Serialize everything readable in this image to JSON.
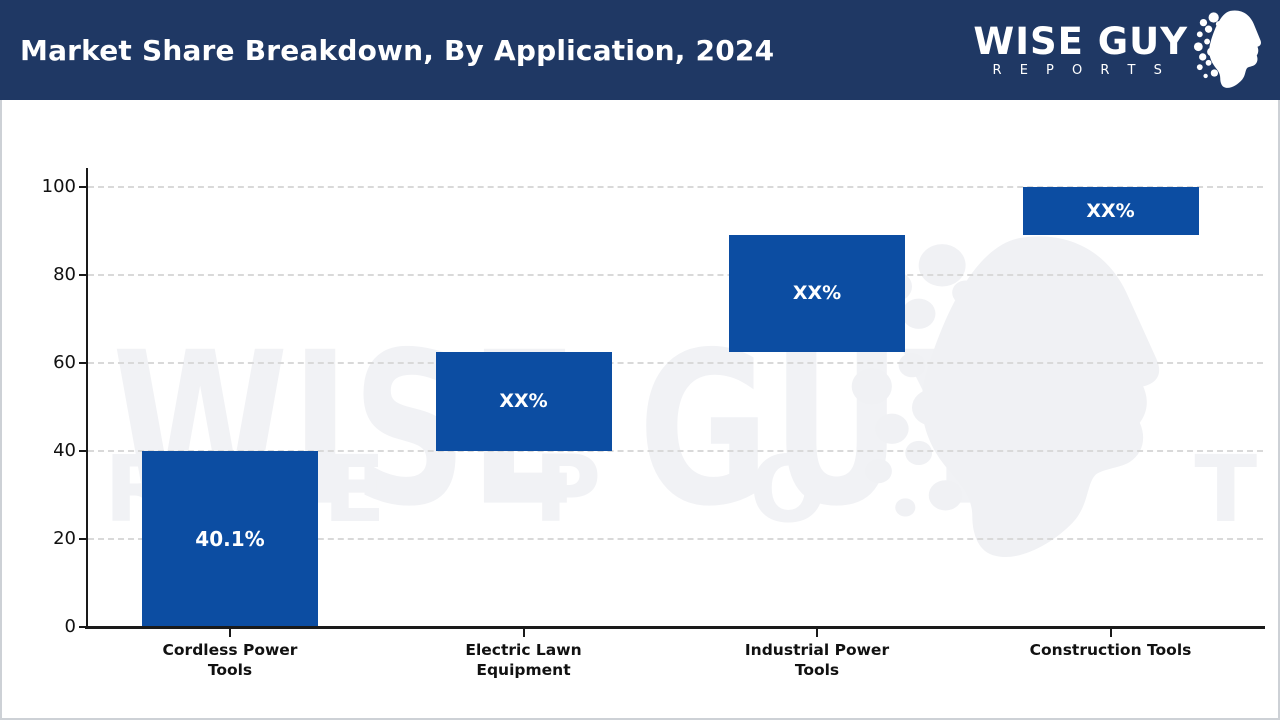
{
  "header": {
    "title": "Market Share Breakdown, By Application, 2024",
    "bg_color": "#1f3864",
    "logo": {
      "line1": "WISE GUY",
      "line2": "R E P O R T S"
    }
  },
  "watermark": {
    "text1": "WISE GUY",
    "text2": "R E P O R T S"
  },
  "chart_data": {
    "type": "bar",
    "subtype": "waterfall-floating-bars",
    "title": "Market Share Breakdown, By Application, 2024",
    "categories": [
      "Cordless Power Tools",
      "Electric Lawn Equipment",
      "Industrial Power Tools",
      "Construction Tools"
    ],
    "category_lines": [
      [
        "Cordless Power",
        "Tools"
      ],
      [
        "Electric Lawn",
        "Equipment"
      ],
      [
        "Industrial Power",
        "Tools"
      ],
      [
        "Construction Tools"
      ]
    ],
    "segments": [
      {
        "start": 0,
        "end": 40.1,
        "label": "40.1%"
      },
      {
        "start": 40.1,
        "end": 62.5,
        "label": "XX%"
      },
      {
        "start": 62.5,
        "end": 89.1,
        "label": "XX%"
      },
      {
        "start": 89.1,
        "end": 100,
        "label": "XX%"
      }
    ],
    "values": [
      40.1,
      22.4,
      26.6,
      10.9
    ],
    "xlabel": "",
    "ylabel": "",
    "ylim": [
      0,
      100
    ],
    "yticks": [
      0,
      20,
      40,
      60,
      80,
      100
    ],
    "grid": "horizontal-dashed",
    "legend": "none",
    "bar_color": "#0c4da2",
    "bar_label_color": "#ffffff",
    "axis_color": "#1a1a1a",
    "gridline_color": "#d9d9d9"
  }
}
